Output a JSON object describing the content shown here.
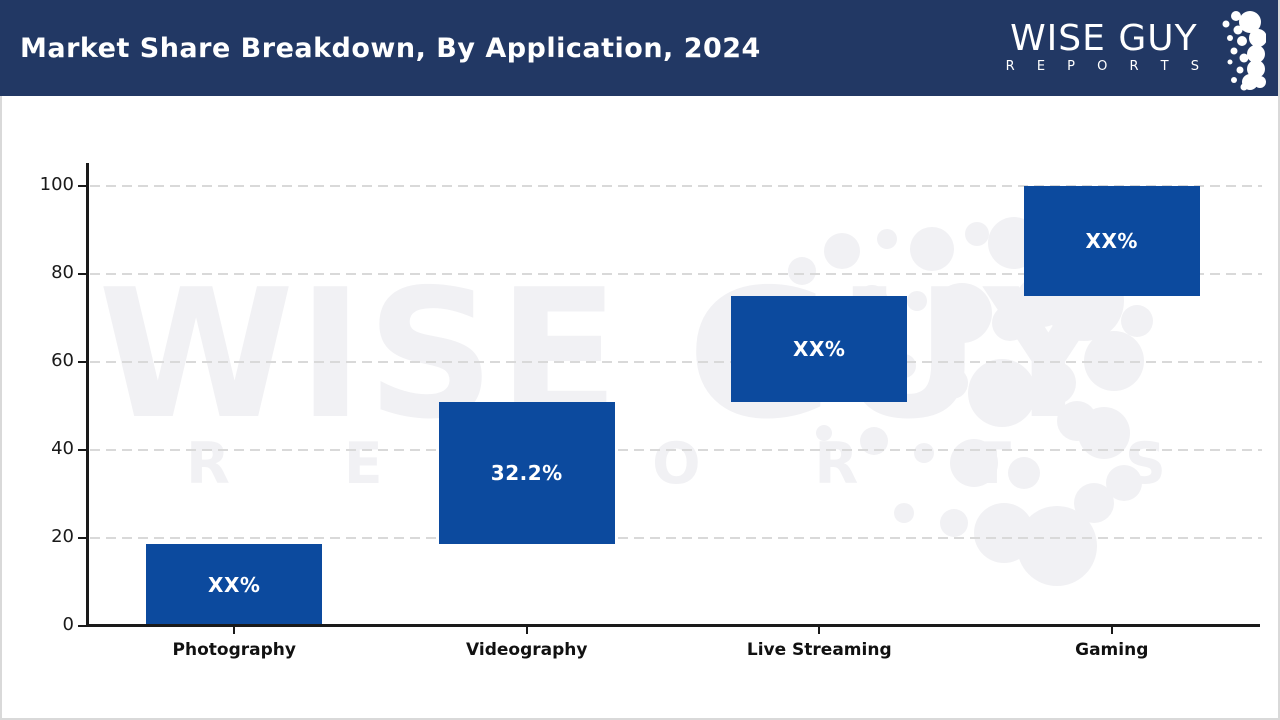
{
  "header": {
    "title": "Market Share Breakdown, By Application, 2024",
    "logo": {
      "wordmark": "WISE GUY",
      "subtext": "R E P O R T S",
      "head_icon": "dotted-head-profile-icon"
    }
  },
  "watermark": {
    "wordmark": "WISE GUY",
    "subtext": "R E P O R T S",
    "head_icon": "dotted-head-profile-icon"
  },
  "colors": {
    "header_bg": "#223864",
    "bar": "#0c4a9e",
    "grid": "#d9d9d9",
    "axis": "#1a1a1a",
    "watermark": "#f1f1f4",
    "bar_label_text": "#ffffff"
  },
  "chart_data": {
    "type": "bar",
    "subtype": "waterfall",
    "title": "Market Share Breakdown, By Application, 2024",
    "categories": [
      "Photography",
      "Videography",
      "Live Streaming",
      "Gaming"
    ],
    "segments": [
      {
        "category": "Photography",
        "start": 0,
        "end": 18.6,
        "label": "XX%"
      },
      {
        "category": "Videography",
        "start": 18.6,
        "end": 50.8,
        "label": "32.2%"
      },
      {
        "category": "Live Streaming",
        "start": 50.8,
        "end": 74.9,
        "label": "XX%"
      },
      {
        "category": "Gaming",
        "start": 74.9,
        "end": 100,
        "label": "XX%"
      }
    ],
    "implied_segment_heights": [
      18.6,
      32.2,
      24.1,
      25.1
    ],
    "bar_labels": [
      "XX%",
      "32.2%",
      "XX%",
      "XX%"
    ],
    "xlabel": "",
    "ylabel": "",
    "ylim": [
      0,
      100
    ],
    "yticks": [
      0,
      20,
      40,
      60,
      80,
      100
    ],
    "grid": "horizontal-dashed",
    "legend": "none",
    "bar_color": "#0c4a9e"
  }
}
